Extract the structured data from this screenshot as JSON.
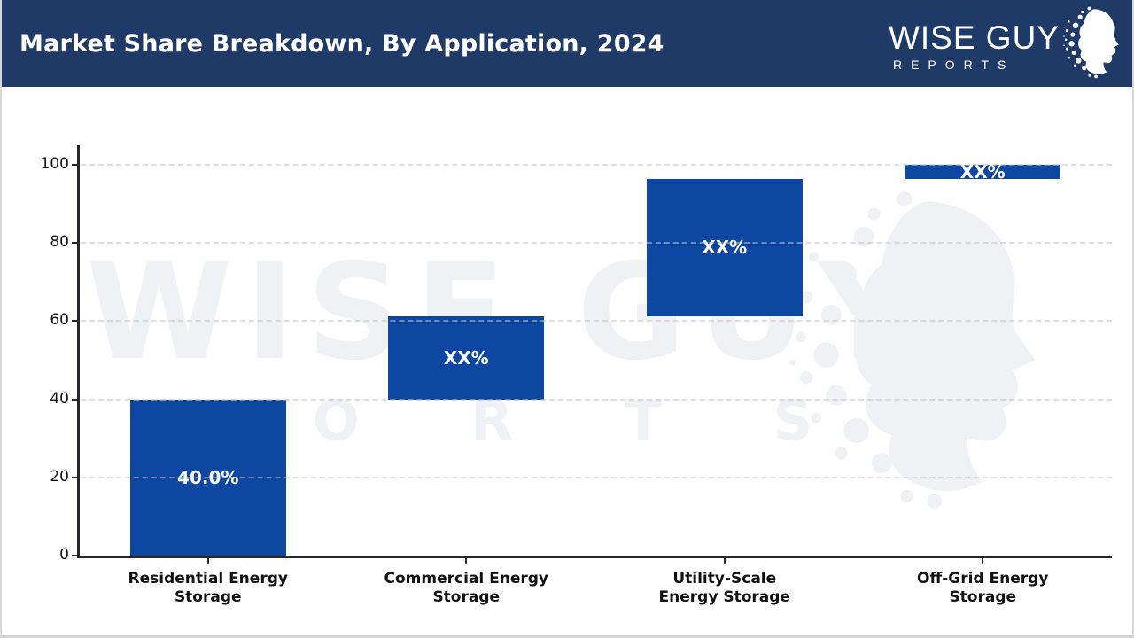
{
  "header": {
    "title": "Market Share Breakdown, By Application, 2024",
    "brand_line1": "WISE GUY",
    "brand_line2": "REPORTS"
  },
  "watermark": {
    "line1": "WISE GUY",
    "line2": "P O R T S"
  },
  "colors": {
    "header_bg": "#1f3a66",
    "bar": "#0d47a1",
    "bar_label": "#ffffff",
    "axis": "#26262b",
    "tick_label": "#111111",
    "grid": "#c3c3c3",
    "watermark": "#f0f1f4",
    "page_border": "#d6d6d6"
  },
  "chart_data": {
    "type": "bar",
    "subtype": "waterfall",
    "title": "Market Share Breakdown, By Application, 2024",
    "xlabel": "",
    "ylabel": "",
    "ylim": [
      0,
      105
    ],
    "yticks": [
      "0",
      "20",
      "40",
      "60",
      "80",
      "100"
    ],
    "grid": "horizontal-dashed",
    "legend": "none",
    "categories": [
      "Residential Energy Storage",
      "Commercial Energy Storage",
      "Utility-Scale Energy Storage",
      "Off-Grid Energy Storage"
    ],
    "category_lines": [
      [
        "Residential Energy",
        "Storage"
      ],
      [
        "Commercial Energy",
        "Storage"
      ],
      [
        "Utility-Scale",
        "Energy Storage"
      ],
      [
        "Off-Grid Energy",
        "Storage"
      ]
    ],
    "segments": [
      {
        "category": "Residential Energy Storage",
        "label": "40.0%",
        "start": 0,
        "end": 40.0,
        "value": 40.0
      },
      {
        "category": "Commercial Energy Storage",
        "label": "XX%",
        "start": 40.0,
        "end": 61.3,
        "value": 21.3
      },
      {
        "category": "Utility-Scale Energy Storage",
        "label": "XX%",
        "start": 61.3,
        "end": 96.3,
        "value": 35.0
      },
      {
        "category": "Off-Grid Energy Storage",
        "label": "XX%",
        "start": 96.3,
        "end": 100.0,
        "value": 3.7
      }
    ]
  }
}
